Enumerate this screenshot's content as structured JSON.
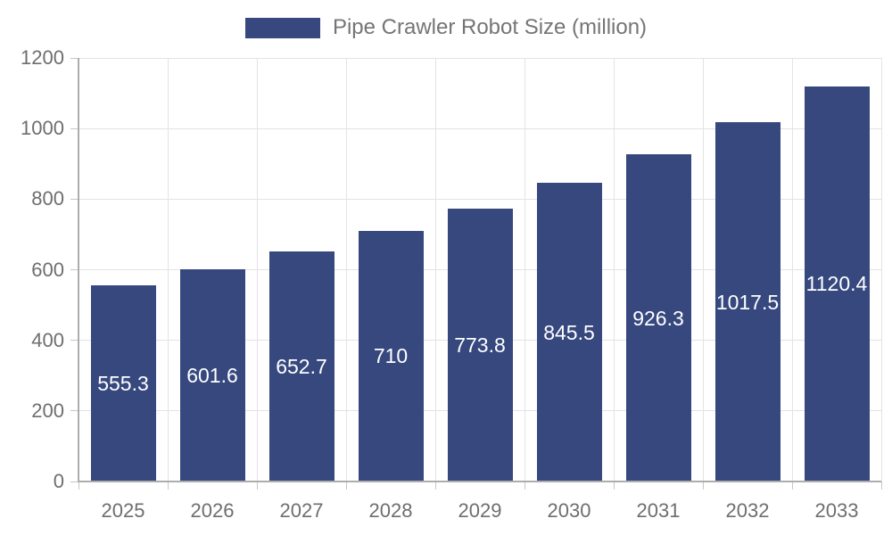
{
  "chart_data": {
    "type": "bar",
    "title": "Pipe Crawler Robot Size (million)",
    "series_name": "Pipe Crawler Robot Size (million)",
    "categories": [
      "2025",
      "2026",
      "2027",
      "2028",
      "2029",
      "2030",
      "2031",
      "2032",
      "2033"
    ],
    "values": [
      555.3,
      601.6,
      652.7,
      710,
      773.8,
      845.5,
      926.3,
      1017.5,
      1120.4
    ],
    "xlabel": "",
    "ylabel": "",
    "ylim": [
      0,
      1200
    ],
    "yticks": [
      0,
      200,
      400,
      600,
      800,
      1000,
      1200
    ],
    "grid": true,
    "legend_position": "top-center",
    "bar_labels_inside": true,
    "colors": {
      "bar": "#36487E",
      "bar_label": "#FFFFFF",
      "axis_line": "#ADADAD",
      "tick_mark": "#C7C7C7",
      "grid_line": "#E3E3E9",
      "tick_label": "#6E6E6E",
      "legend_text": "#757575",
      "background": "#FFFFFF"
    }
  }
}
